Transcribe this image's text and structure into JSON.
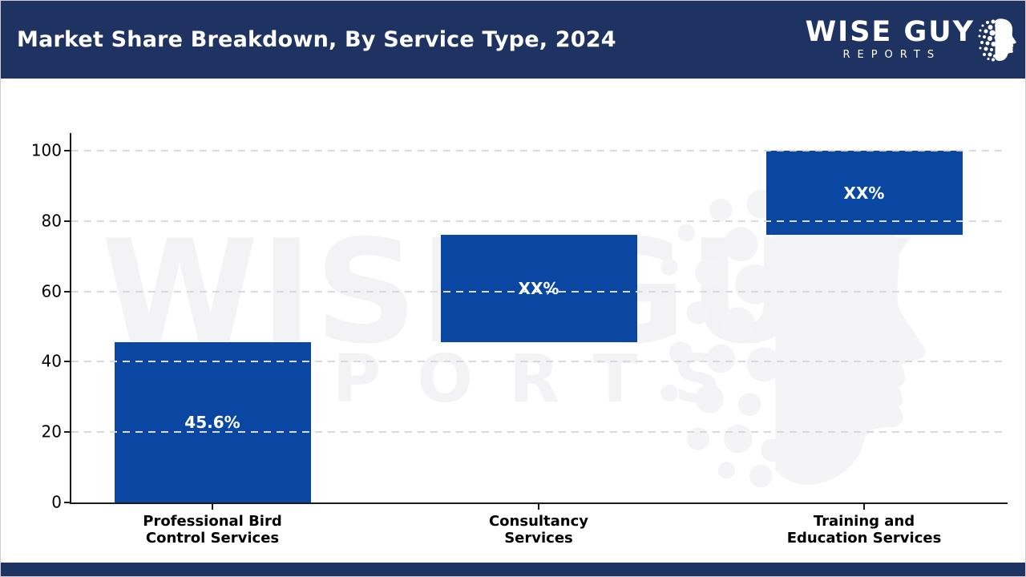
{
  "header": {
    "title": "Market Share Breakdown, By Service Type, 2024",
    "logo": {
      "brand_line1": "WISE GUY",
      "brand_line2": "REPORTS"
    }
  },
  "watermark": {
    "line1": "WISE GUY",
    "line2": "REPORTS"
  },
  "colors": {
    "header_bg": "#1f3362",
    "footer_bg": "#1f3362",
    "bar_fill": "#0a47a2",
    "bar_label_text": "#ffffff",
    "gridline": "#dadada",
    "axis": "#1a1a1a",
    "watermark": "#f3f3f6"
  },
  "chart_data": {
    "type": "bar",
    "subtype": "waterfall-cumulative",
    "title": "Market Share Breakdown, By Service Type, 2024",
    "categories": [
      {
        "line1": "Professional Bird",
        "line2": "Control Services",
        "full": "Professional Bird Control Services"
      },
      {
        "line1": "Consultancy",
        "line2": "Services",
        "full": "Consultancy Services"
      },
      {
        "line1": "Training and",
        "line2": "Education Services",
        "full": "Training and Education Services"
      }
    ],
    "bars": [
      {
        "category": "Professional Bird Control Services",
        "start": 0,
        "end": 45.6,
        "label": "45.6%"
      },
      {
        "category": "Consultancy Services",
        "start": 45.6,
        "end": 76,
        "label": "XX%"
      },
      {
        "category": "Training and Education Services",
        "start": 76,
        "end": 100,
        "label": "XX%"
      }
    ],
    "xlabel": "",
    "ylabel": "",
    "ylim": [
      0,
      105
    ],
    "yticks": [
      0,
      20,
      40,
      60,
      80,
      100
    ],
    "grid": "horizontal-dashed",
    "legend": "none"
  }
}
